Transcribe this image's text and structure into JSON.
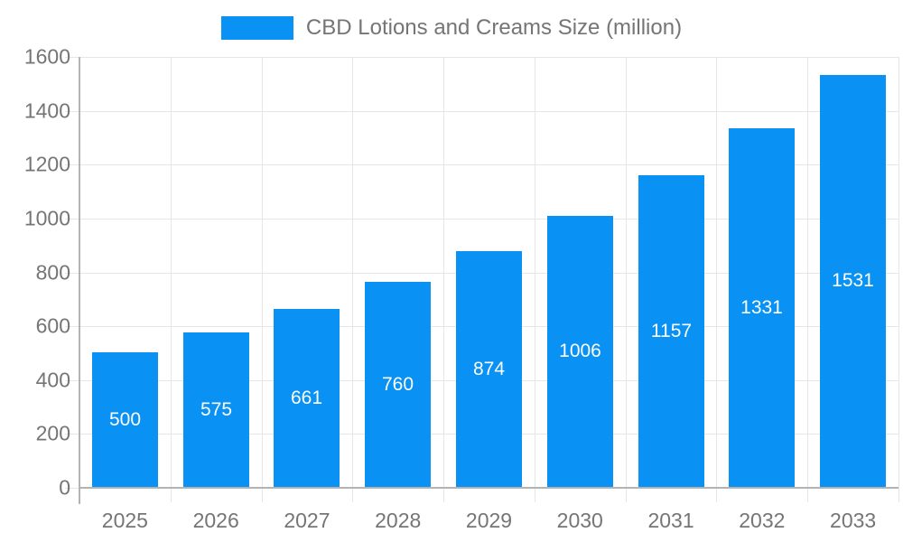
{
  "chart_data": {
    "type": "bar",
    "title": "CBD Lotions and Creams Size (million)",
    "categories": [
      "2025",
      "2026",
      "2027",
      "2028",
      "2029",
      "2030",
      "2031",
      "2032",
      "2033"
    ],
    "values": [
      500,
      575,
      661,
      760,
      874,
      1006,
      1157,
      1331,
      1531
    ],
    "yticks": [
      0,
      200,
      400,
      600,
      800,
      1000,
      1200,
      1400,
      1600
    ],
    "ylim": [
      0,
      1600
    ],
    "xlabel": "",
    "ylabel": "",
    "grid": "on",
    "legend_position": "top-center",
    "bar_label_position": "center-inside",
    "colors": {
      "bar": "#0991f3",
      "bar_label": "#ffffff",
      "axis_text": "#757575",
      "axis_line": "#b3b3b3",
      "gridline": "#e6e6e6",
      "background": "#ffffff"
    }
  }
}
